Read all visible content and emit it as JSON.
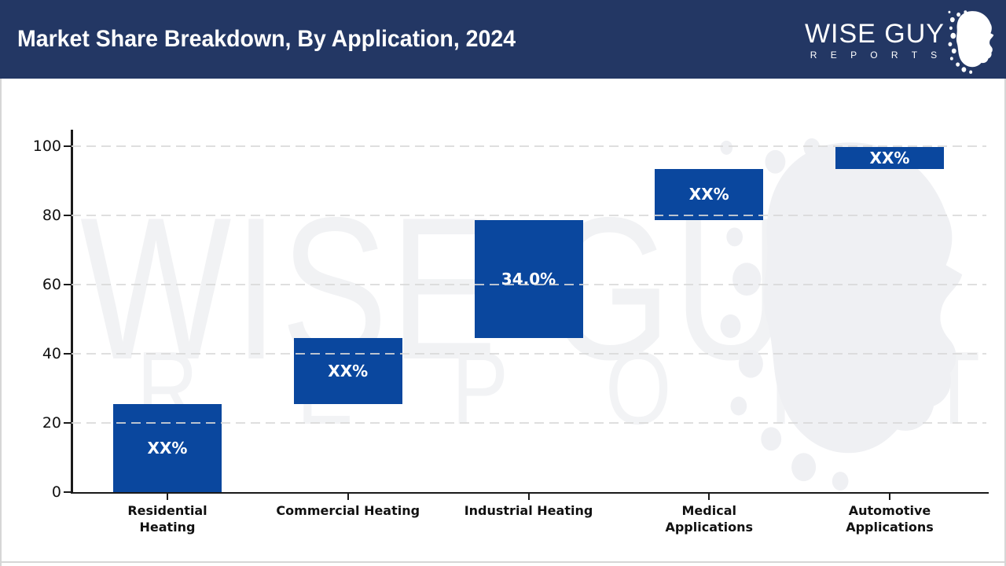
{
  "header": {
    "title": "Market Share Breakdown, By Application, 2024",
    "bg_color": "#233764",
    "logo": {
      "line1": "WISE GUY",
      "line2": "R E P O R T S"
    }
  },
  "watermark": {
    "line1": "WISE GUY",
    "line2": "R E P O R T S"
  },
  "chart_data": {
    "type": "bar",
    "subtype": "waterfall",
    "title": "Market Share Breakdown, By Application, 2024",
    "xlabel": "",
    "ylabel": "",
    "ylim": [
      0,
      105
    ],
    "yticks": [
      0,
      20,
      40,
      60,
      80,
      100
    ],
    "grid": "horizontal-dashed",
    "legend": "none",
    "bar_color": "#0A479E",
    "grid_color": "#D9D9D9",
    "axis_color": "#1A1A1A",
    "label_color": "#FFFFFF",
    "categories": [
      "Residential\nHeating",
      "Commercial Heating",
      "Industrial Heating",
      "Medical\nApplications",
      "Automotive\nApplications"
    ],
    "series": [
      {
        "name": "Market Share",
        "segments": [
          {
            "category": "Residential Heating",
            "start": 0,
            "end": 25.5,
            "label": "XX%"
          },
          {
            "category": "Commercial Heating",
            "start": 25.5,
            "end": 44.5,
            "label": "XX%"
          },
          {
            "category": "Industrial Heating",
            "start": 44.5,
            "end": 78.5,
            "label": "34.0%"
          },
          {
            "category": "Medical Applications",
            "start": 78.5,
            "end": 93.4,
            "label": "XX%"
          },
          {
            "category": "Automotive Applications",
            "start": 93.4,
            "end": 99.7,
            "label": "XX%"
          }
        ]
      }
    ]
  }
}
